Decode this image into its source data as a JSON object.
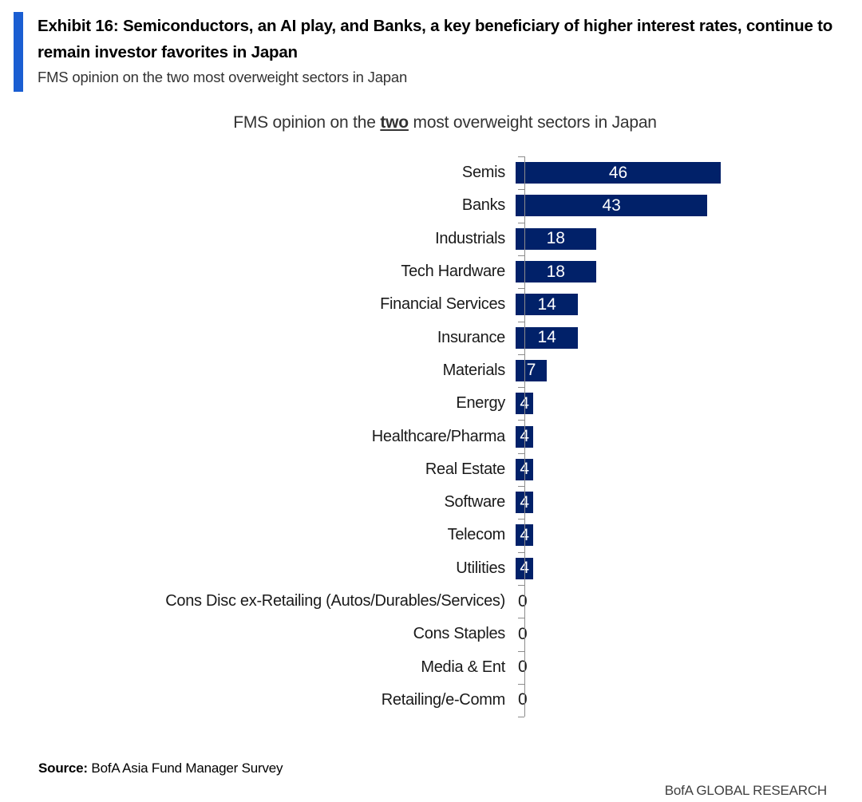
{
  "header": {
    "exhibit_title": "Exhibit 16: Semiconductors, an AI play, and Banks, a key beneficiary of higher interest rates, continue to remain investor favorites in Japan",
    "subtitle": "FMS opinion on the two most overweight sectors in Japan",
    "accent_color": "#1a5ed2"
  },
  "chart_title": {
    "prefix": "FMS opinion on the ",
    "emphasis": "two",
    "suffix": " most overweight sectors in Japan"
  },
  "chart_data": {
    "type": "bar",
    "orientation": "horizontal",
    "title": "FMS opinion on the two most overweight sectors in Japan",
    "categories": [
      "Semis",
      "Banks",
      "Industrials",
      "Tech Hardware",
      "Financial Services",
      "Insurance",
      "Materials",
      "Energy",
      "Healthcare/Pharma",
      "Real Estate",
      "Software",
      "Telecom",
      "Utilities",
      "Cons Disc ex-Retailing (Autos/Durables/Services)",
      "Cons Staples",
      "Media & Ent",
      "Retailing/e-Comm"
    ],
    "values": [
      46,
      43,
      18,
      18,
      14,
      14,
      7,
      4,
      4,
      4,
      4,
      4,
      4,
      0,
      0,
      0,
      0
    ],
    "xlim": [
      0,
      50
    ],
    "grid": false,
    "legend": false,
    "value_labels": "inside-center",
    "bar_color": "#012169",
    "value_label_color": "#ffffff",
    "zero_label_color": "#1a1a1a",
    "axis_color": "#8c8c8c"
  },
  "footer": {
    "source_label": "Source:",
    "source_text": " BofA Asia Fund Manager Survey",
    "brand": "BofA GLOBAL RESEARCH"
  }
}
